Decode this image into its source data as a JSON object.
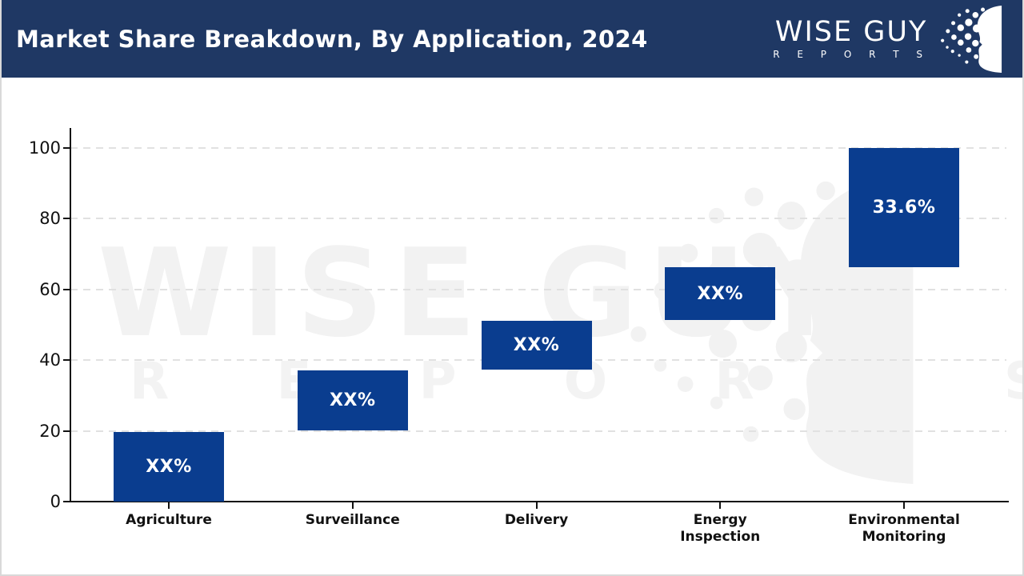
{
  "header": {
    "title": "Market Share Breakdown, By Application, 2024",
    "logo": {
      "brand": "WISE GUY",
      "sub": "R E P O R T S"
    }
  },
  "watermark": {
    "brand": "WISE GUY",
    "sub": "R E P O R T S"
  },
  "colors": {
    "header_bg": "#1f3864",
    "bar": "#0a3d8f",
    "grid": "#e1e1e1",
    "axis": "#111111",
    "bar_label_text": "#ffffff",
    "watermark": "#f2f2f2"
  },
  "chart_data": {
    "type": "bar",
    "variant": "waterfall-style floating bars",
    "title": "Market Share Breakdown, By Application, 2024",
    "xlabel": "",
    "ylabel": "",
    "categories": [
      "Agriculture",
      "Surveillance",
      "Delivery",
      "Energy Inspection",
      "Environmental Monitoring"
    ],
    "bars": [
      {
        "category": "Agriculture",
        "start": 0,
        "end": 19.7,
        "label": "XX%"
      },
      {
        "category": "Surveillance",
        "start": 20.1,
        "end": 37.2,
        "label": "XX%"
      },
      {
        "category": "Delivery",
        "start": 37.4,
        "end": 51.1,
        "label": "XX%"
      },
      {
        "category": "Energy Inspection",
        "start": 51.3,
        "end": 66.2,
        "label": "XX%"
      },
      {
        "category": "Environmental Monitoring",
        "start": 66.4,
        "end": 99.9,
        "label": "33.6%"
      }
    ],
    "yticks": [
      0,
      20,
      40,
      60,
      80,
      100
    ],
    "ylim": [
      0,
      106
    ],
    "grid": "horizontal dashed",
    "legend": null
  }
}
